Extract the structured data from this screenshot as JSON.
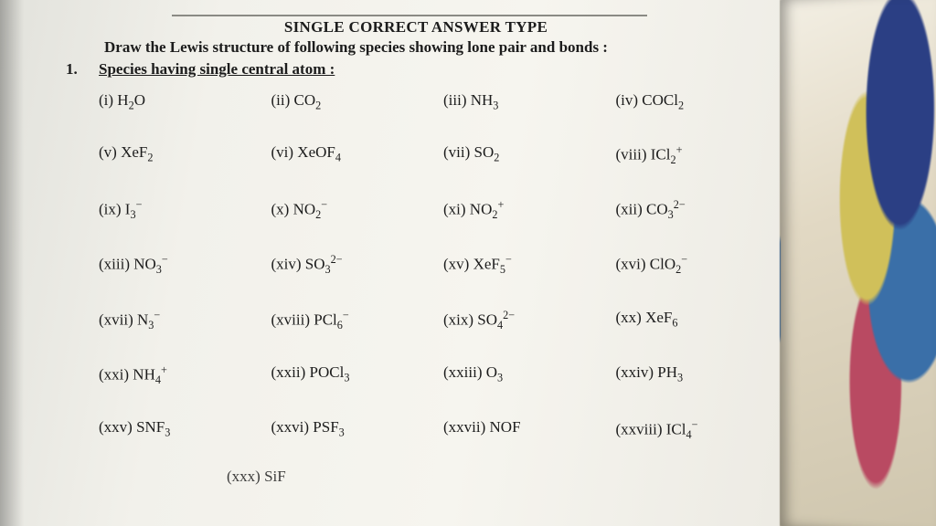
{
  "header": {
    "section_title": "SINGLE CORRECT ANSWER TYPE",
    "instruction": "Draw the Lewis structure of following species showing lone pair and bonds :"
  },
  "question": {
    "number": "1.",
    "title": "Species having single central atom :"
  },
  "items": [
    {
      "roman": "(i)",
      "html": "H<sub>2</sub>O"
    },
    {
      "roman": "(ii)",
      "html": "CO<sub>2</sub>"
    },
    {
      "roman": "(iii)",
      "html": "NH<sub>3</sub>"
    },
    {
      "roman": "(iv)",
      "html": "COCl<sub>2</sub>"
    },
    {
      "roman": "(v)",
      "html": "XeF<sub>2</sub>"
    },
    {
      "roman": "(vi)",
      "html": "XeOF<sub>4</sub>"
    },
    {
      "roman": "(vii)",
      "html": "SO<sub>2</sub>"
    },
    {
      "roman": "(viii)",
      "html": "ICl<sub>2</sub><sup>+</sup>"
    },
    {
      "roman": "(ix)",
      "html": "I<sub>3</sub><sup>−</sup>"
    },
    {
      "roman": "(x)",
      "html": "NO<sub>2</sub><sup>−</sup>"
    },
    {
      "roman": "(xi)",
      "html": "NO<sub>2</sub><sup>+</sup>"
    },
    {
      "roman": "(xii)",
      "html": "CO<sub>3</sub><sup>2−</sup>"
    },
    {
      "roman": "(xiii)",
      "html": "NO<sub>3</sub><sup>−</sup>"
    },
    {
      "roman": "(xiv)",
      "html": "SO<sub>3</sub><sup>2−</sup>"
    },
    {
      "roman": "(xv)",
      "html": "XeF<sub>5</sub><sup>−</sup>"
    },
    {
      "roman": "(xvi)",
      "html": "ClO<sub>2</sub><sup>−</sup>"
    },
    {
      "roman": "(xvii)",
      "html": "N<sub>3</sub><sup>−</sup>"
    },
    {
      "roman": "(xviii)",
      "html": "PCl<sub>6</sub><sup>−</sup>"
    },
    {
      "roman": "(xix)",
      "html": "SO<sub>4</sub><sup>2−</sup>"
    },
    {
      "roman": "(xx)",
      "html": "XeF<sub>6</sub>"
    },
    {
      "roman": "(xxi)",
      "html": "NH<sub>4</sub><sup>+</sup>"
    },
    {
      "roman": "(xxii)",
      "html": "POCl<sub>3</sub>"
    },
    {
      "roman": "(xxiii)",
      "html": "O<sub>3</sub>"
    },
    {
      "roman": "(xxiv)",
      "html": "PH<sub>3</sub>"
    },
    {
      "roman": "(xxv)",
      "html": "SNF<sub>3</sub>"
    },
    {
      "roman": "(xxvi)",
      "html": "PSF<sub>3</sub>"
    },
    {
      "roman": "(xxvii)",
      "html": "NOF"
    },
    {
      "roman": "(xxviii)",
      "html": "ICl<sub>4</sub><sup>−</sup>"
    }
  ],
  "cutoff": "(xxx) SiF",
  "colors": {
    "page_bg": "#f4f3ed",
    "text": "#1c1c1c"
  },
  "typography": {
    "body_font": "Times New Roman",
    "body_size_pt": 13,
    "header_weight": "bold"
  }
}
